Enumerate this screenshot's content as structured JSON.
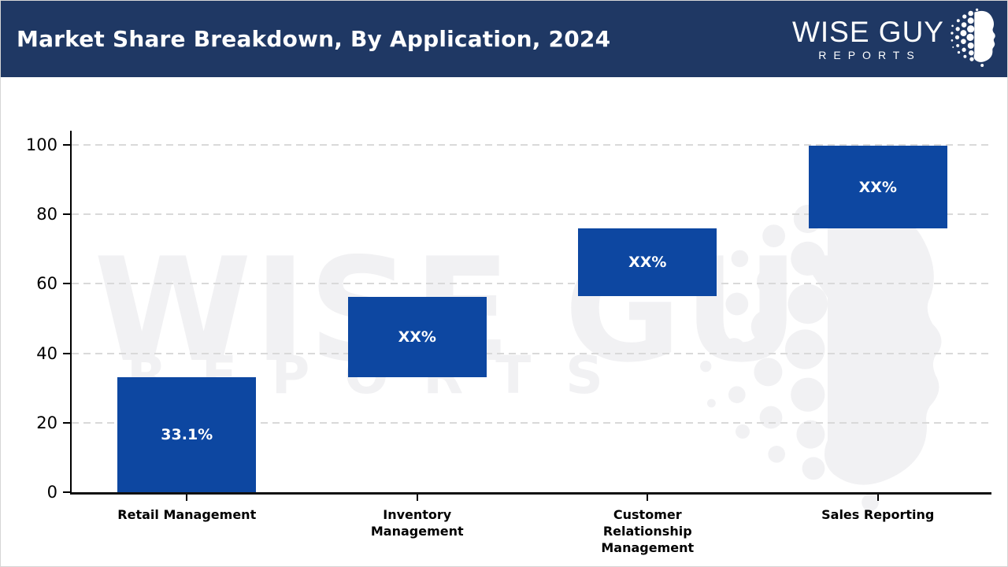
{
  "header": {
    "title": "Market Share Breakdown, By Application, 2024",
    "bg_color": "#1f3864",
    "logo": {
      "line1": "WISE GUY",
      "line2": "REPORTS"
    }
  },
  "watermark": {
    "line1": "WISE GUY",
    "line2": "REPORTS"
  },
  "chart_data": {
    "type": "bar",
    "subtype": "waterfall",
    "title": "Market Share Breakdown, By Application, 2024",
    "xlabel": "",
    "ylabel": "",
    "ylim": [
      0,
      105
    ],
    "yticks": [
      0,
      20,
      40,
      60,
      80,
      100
    ],
    "grid": "horizontal dashed",
    "bar_color": "#0d47a1",
    "value_label_color": "#ffffff",
    "categories": [
      "Retail Management",
      "Inventory\nManagement",
      "Customer\nRelationship\nManagement",
      "Sales Reporting"
    ],
    "segments": [
      {
        "category": "Retail Management",
        "start": 0,
        "end": 33.1,
        "label": "33.1%"
      },
      {
        "category": "Inventory\nManagement",
        "start": 33.1,
        "end": 56.2,
        "label": "XX%"
      },
      {
        "category": "Customer\nRelationship\nManagement",
        "start": 56.4,
        "end": 75.9,
        "label": "XX%"
      },
      {
        "category": "Sales Reporting",
        "start": 75.9,
        "end": 99.8,
        "label": "XX%"
      }
    ]
  }
}
